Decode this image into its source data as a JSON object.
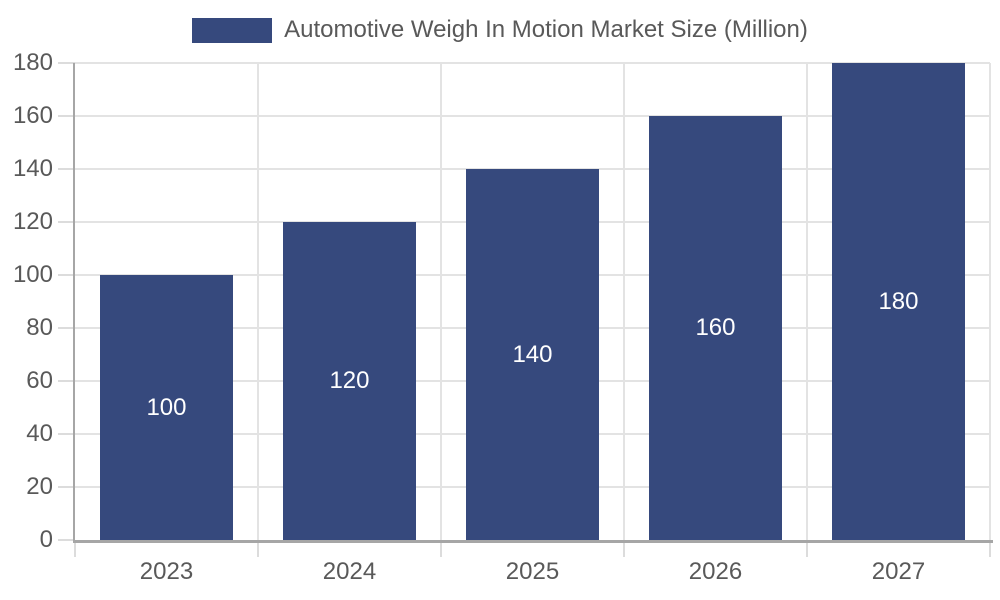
{
  "chart_data": {
    "type": "bar",
    "title": "Automotive Weigh In Motion Market Size (Million)",
    "categories": [
      "2023",
      "2024",
      "2025",
      "2026",
      "2027"
    ],
    "values": [
      100,
      120,
      140,
      160,
      180
    ],
    "xlabel": "",
    "ylabel": "",
    "ylim": [
      0,
      180
    ],
    "ytick_step": 20,
    "grid": true,
    "legend_position": "top-center",
    "colors": {
      "bar": "#36497D",
      "bar_label": "#FFFFFF",
      "axis_text": "#595959",
      "axis_line": "#A6A6A6",
      "gridline": "#E3E3E3",
      "tick": "#DCDCDC",
      "background": "#FFFFFF"
    }
  }
}
